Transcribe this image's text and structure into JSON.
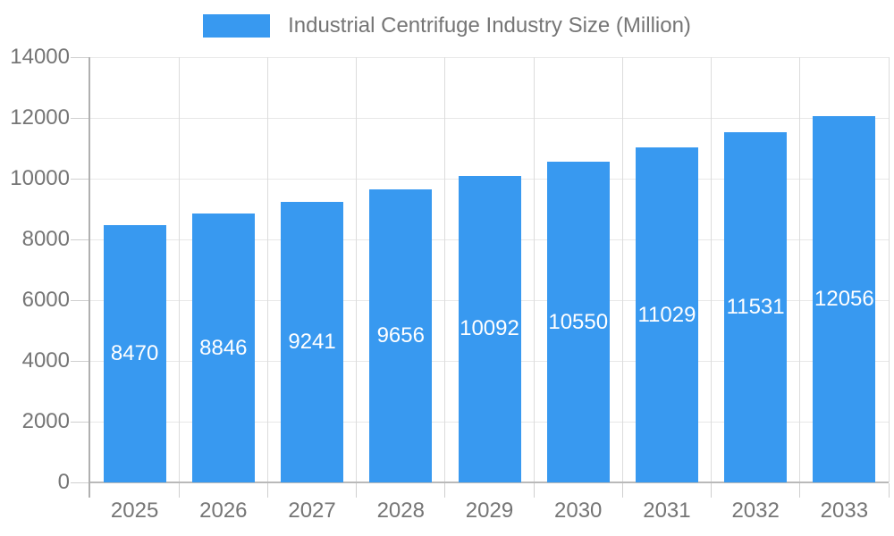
{
  "legend": {
    "label": "Industrial Centrifuge Industry Size (Million)",
    "swatch_color": "#3899F0"
  },
  "chart_data": {
    "type": "bar",
    "title": "Industrial Centrifuge Industry Size (Million)",
    "categories": [
      "2025",
      "2026",
      "2027",
      "2028",
      "2029",
      "2030",
      "2031",
      "2032",
      "2033"
    ],
    "series": [
      {
        "name": "Industrial Centrifuge Industry Size (Million)",
        "values": [
          8470,
          8846,
          9241,
          9656,
          10092,
          10550,
          11029,
          11531,
          12056
        ],
        "color": "#3899F0"
      }
    ],
    "value_labels": {
      "visible": true,
      "color": "#ffffff",
      "position": "inside-center"
    },
    "xlabel": "",
    "ylabel": "",
    "ylim": [
      0,
      14000
    ],
    "yticks": [
      0,
      2000,
      4000,
      6000,
      8000,
      10000,
      12000,
      14000
    ],
    "grid": {
      "horizontal": true,
      "vertical": true
    },
    "legend_position": "top-center",
    "colors": {
      "bar": "#3899F0",
      "axis_text": "#757575",
      "axis_line": "#b0b0b0",
      "gridline": "#e3e3e3",
      "background": "#ffffff"
    }
  }
}
